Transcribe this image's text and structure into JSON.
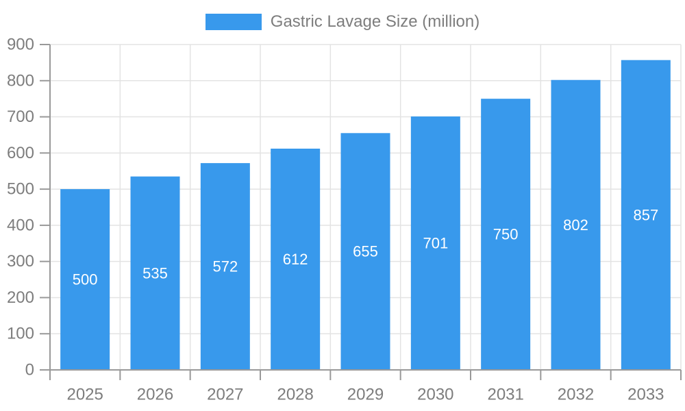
{
  "chart_data": {
    "type": "bar",
    "title": "",
    "legend_entries": [
      "Gastric Lavage Size (million)"
    ],
    "legend_position": "top",
    "categories": [
      "2025",
      "2026",
      "2027",
      "2028",
      "2029",
      "2030",
      "2031",
      "2032",
      "2033"
    ],
    "series": [
      {
        "name": "Gastric Lavage Size (million)",
        "values": [
          500,
          535,
          572,
          612,
          655,
          701,
          750,
          802,
          857
        ]
      }
    ],
    "bar_labels_shown": true,
    "xlabel": "",
    "ylabel": "",
    "ylim": [
      0,
      900
    ],
    "ytick_step": 100,
    "grid": true,
    "colors": {
      "bar": "#3899EC",
      "axis_line": "#999999",
      "grid_line": "#E3E3E3",
      "tick_label": "#7D7D7D",
      "bar_label": "#FFFFFF"
    }
  }
}
